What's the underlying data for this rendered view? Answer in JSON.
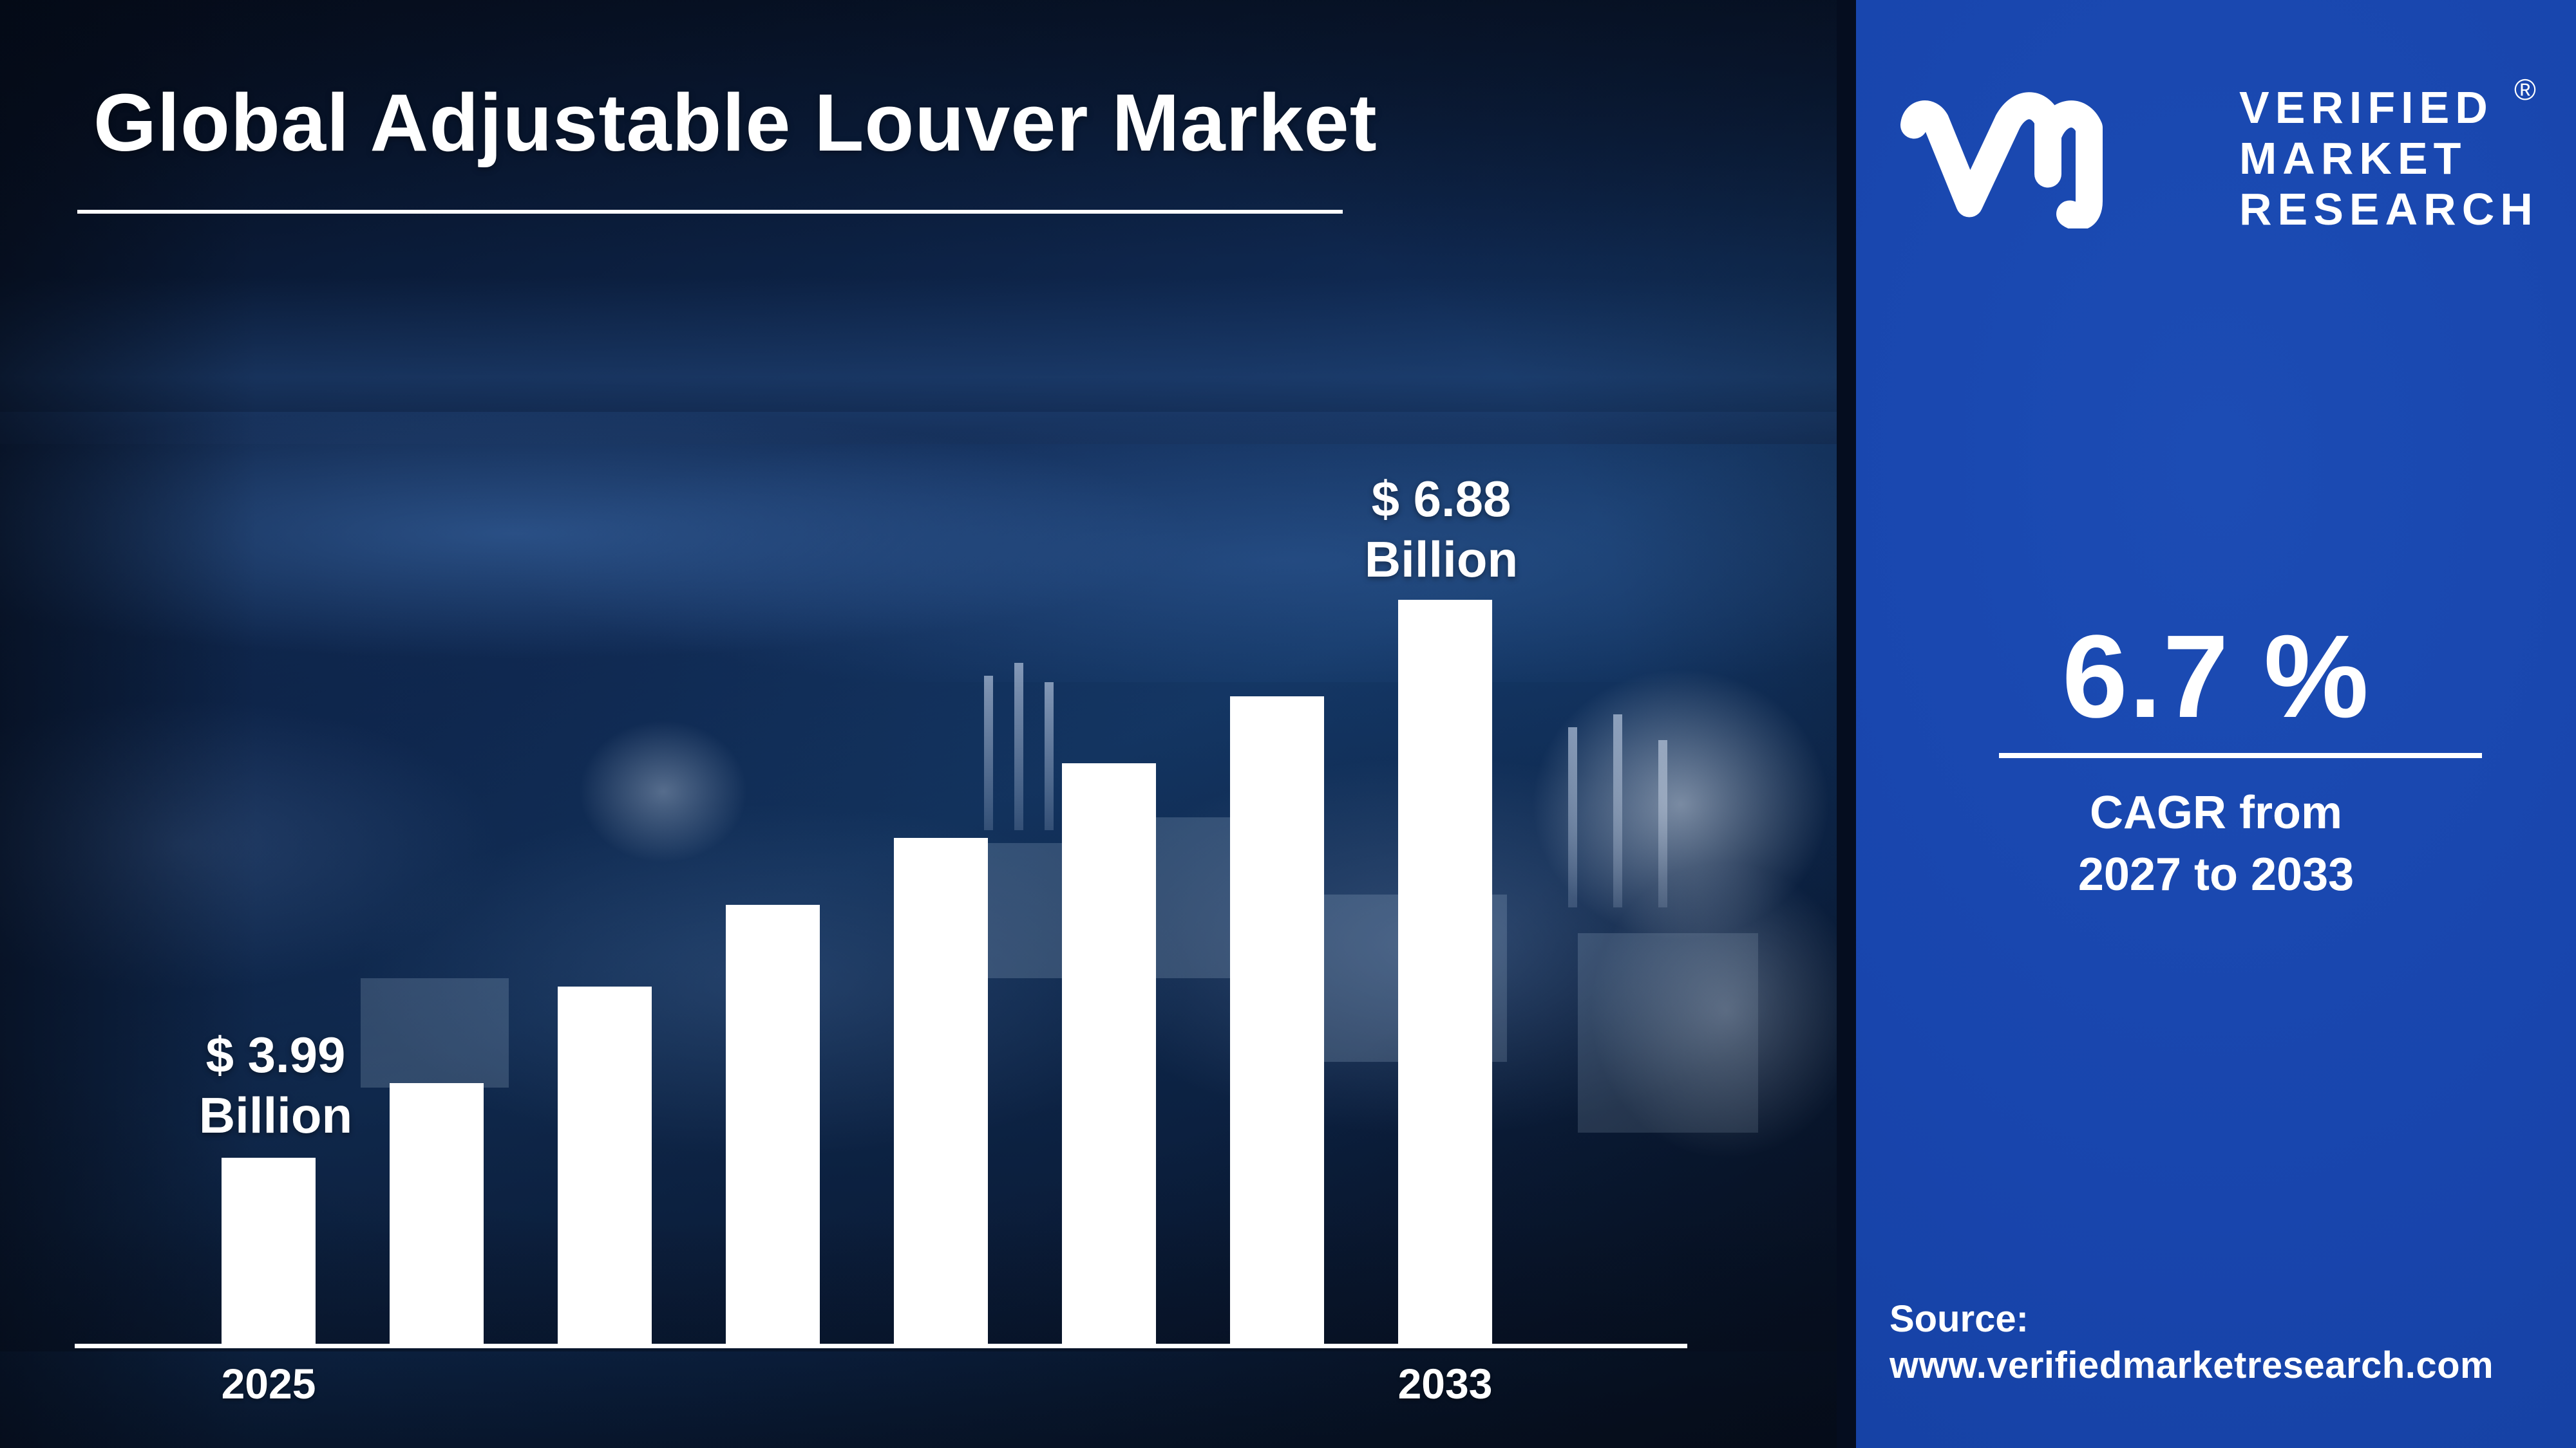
{
  "header": {
    "title": "Global Adjustable Louver Market"
  },
  "brand": {
    "monogram": "VM",
    "lines": [
      "VERIFIED",
      "MARKET",
      "RESEARCH"
    ],
    "registered_mark": "®"
  },
  "stats": {
    "cagr_value": "6.7 %",
    "cagr_caption_line1": "CAGR from",
    "cagr_caption_line2": "2027 to 2033"
  },
  "source": {
    "label": "Source:",
    "url": "www.verifiedmarketresearch.com"
  },
  "colors": {
    "panel_blue": "#1845ad",
    "background_navy": "#0f2850",
    "bar_white": "#ffffff",
    "axis_white": "#ffffff",
    "text_white": "#ffffff"
  },
  "chart_data": {
    "type": "bar",
    "title": "Global Adjustable Louver Market",
    "unit": "USD Billion",
    "xlabel": "",
    "ylabel": "",
    "grid": false,
    "legend": false,
    "x_axis": {
      "first_tick": "2025",
      "last_tick": "2033"
    },
    "annotations": {
      "start": {
        "line1": "$ 3.99",
        "line2": "Billion"
      },
      "end": {
        "line1": "$ 6.88",
        "line2": "Billion"
      }
    },
    "bars": [
      {
        "year": "2025",
        "value_billion_usd": 3.99,
        "rel_height": 0.25
      },
      {
        "year": "",
        "value_billion_usd": null,
        "rel_height": 0.35
      },
      {
        "year": "",
        "value_billion_usd": null,
        "rel_height": 0.48
      },
      {
        "year": "",
        "value_billion_usd": null,
        "rel_height": 0.59
      },
      {
        "year": "",
        "value_billion_usd": null,
        "rel_height": 0.68
      },
      {
        "year": "",
        "value_billion_usd": null,
        "rel_height": 0.78
      },
      {
        "year": "",
        "value_billion_usd": null,
        "rel_height": 0.87
      },
      {
        "year": "2033",
        "value_billion_usd": 6.88,
        "rel_height": 1.0
      }
    ]
  }
}
